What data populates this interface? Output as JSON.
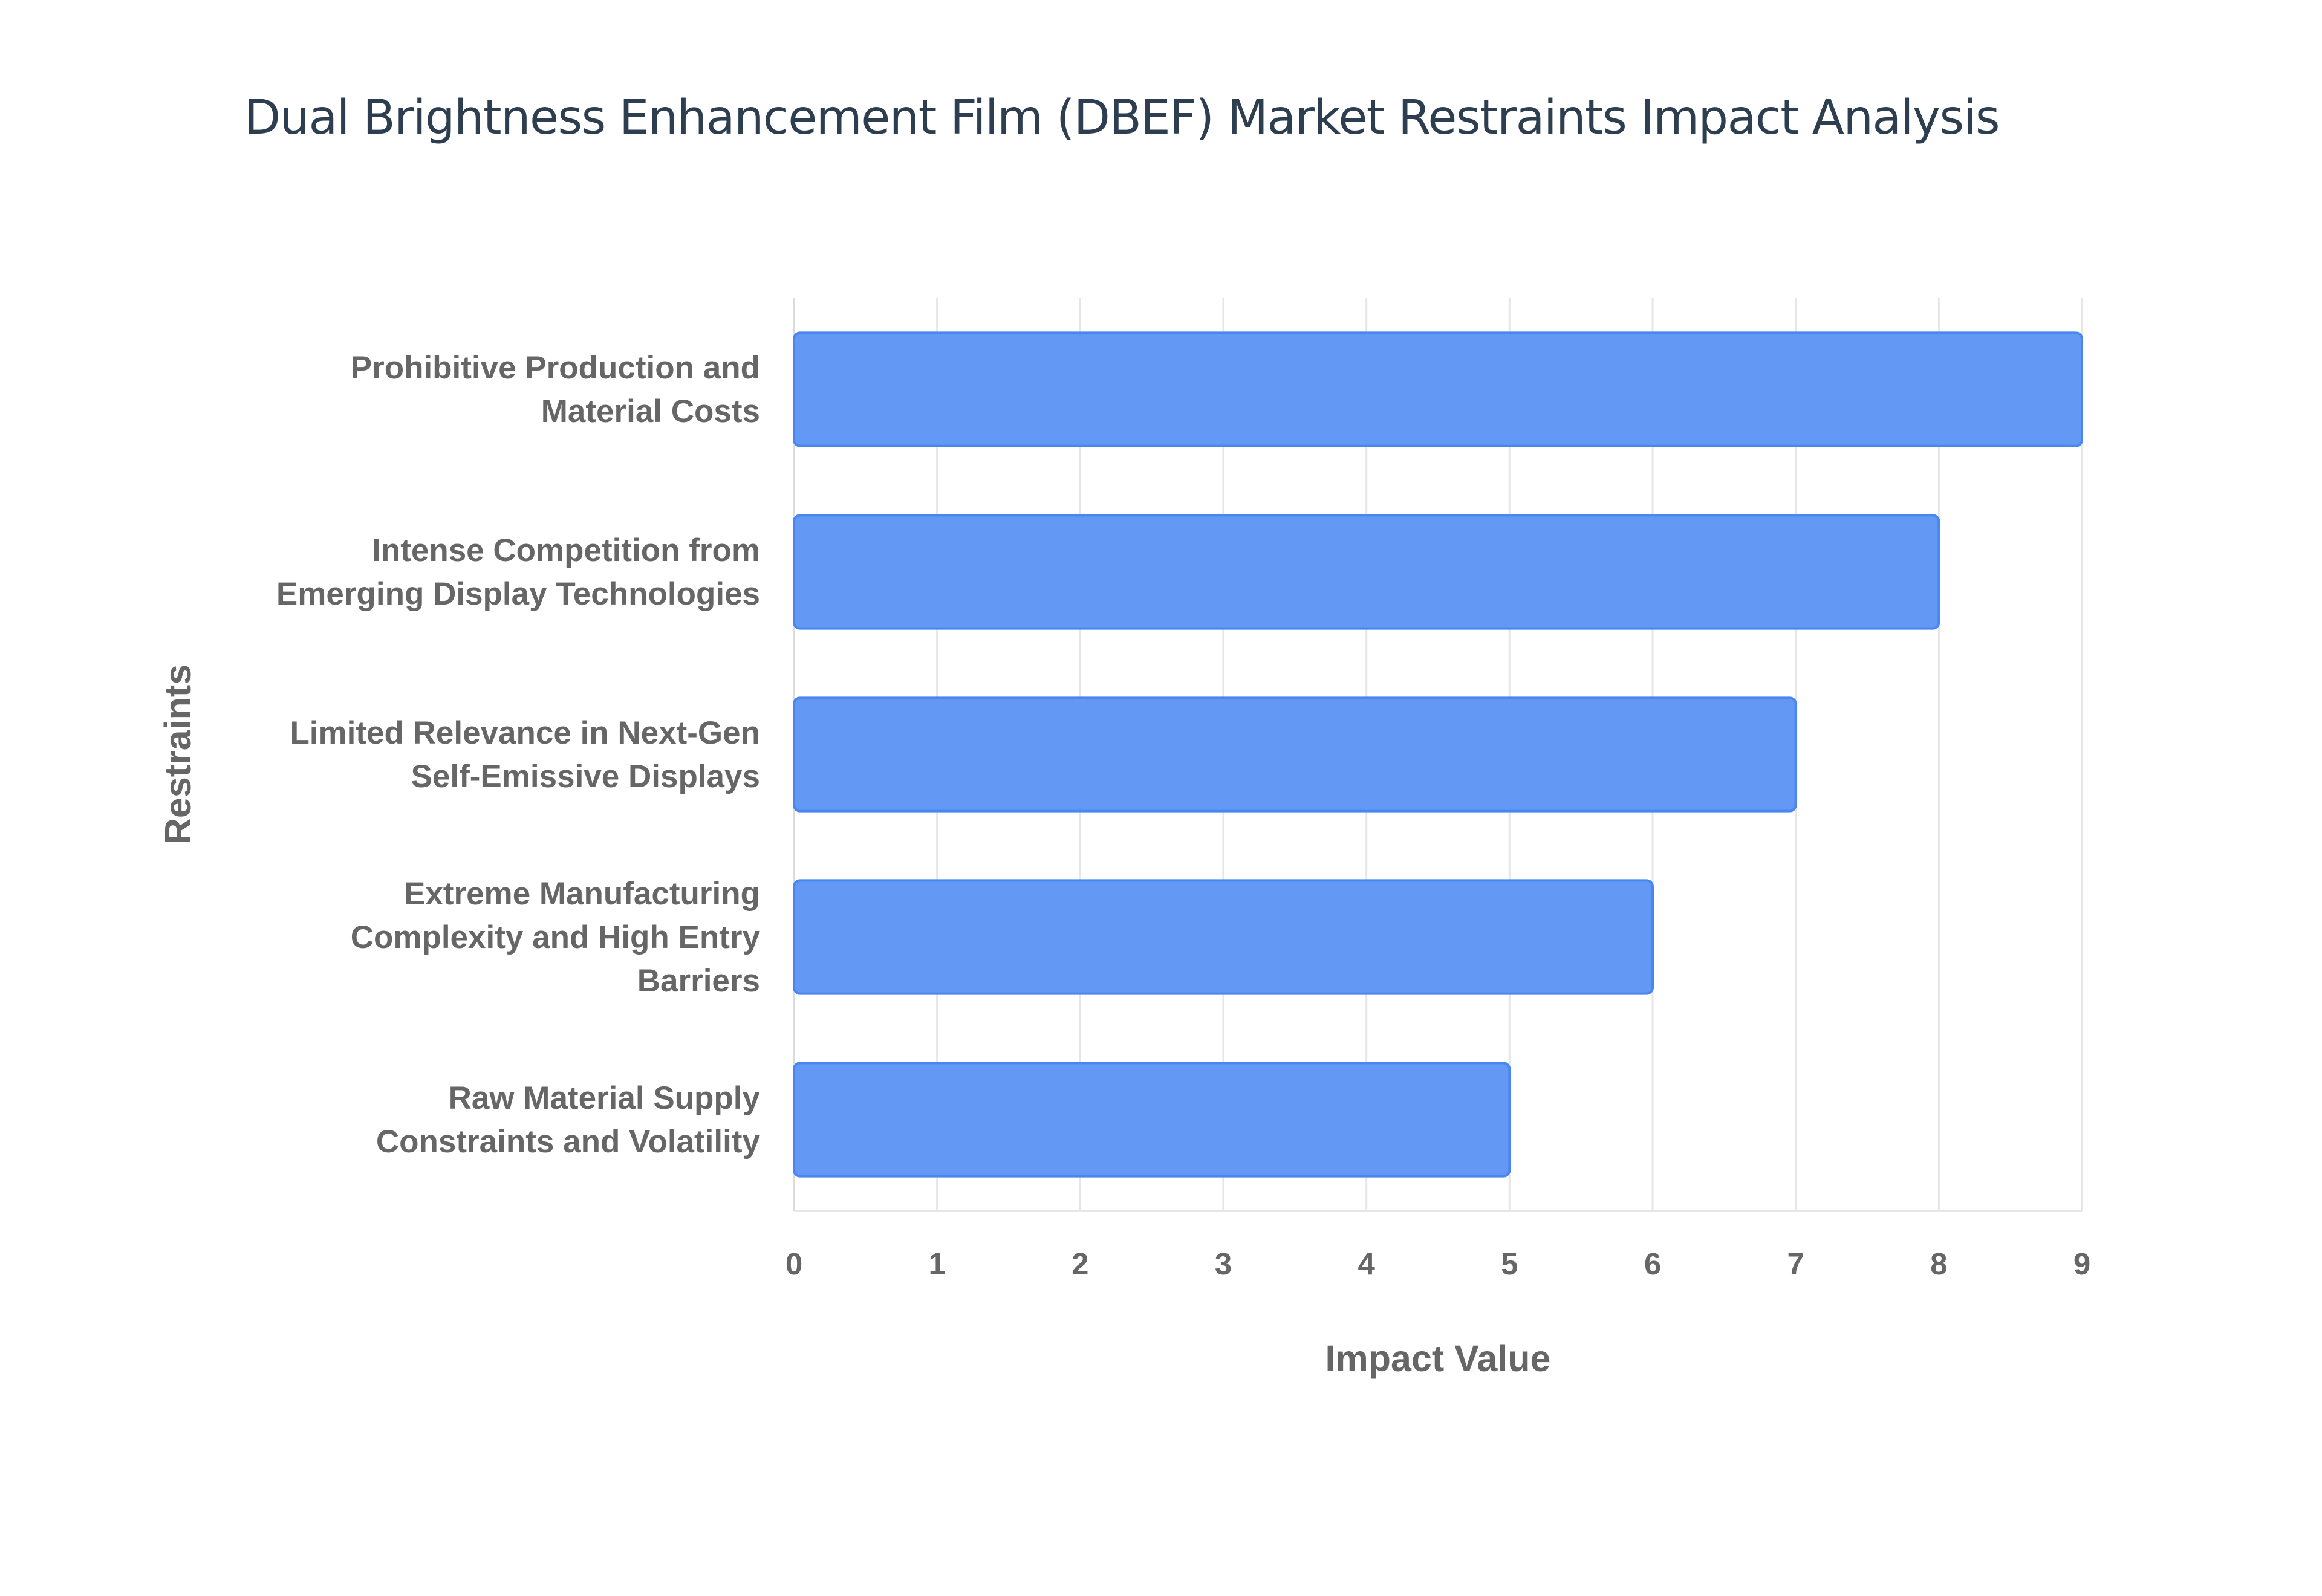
{
  "chart_data": {
    "type": "bar",
    "orientation": "horizontal",
    "title": "Dual Brightness Enhancement Film (DBEF) Market Restraints Impact Analysis",
    "xlabel": "Impact Value",
    "ylabel": "Restraints",
    "categories": [
      [
        "Prohibitive Production and",
        "Material Costs"
      ],
      [
        "Intense Competition from",
        "Emerging Display Technologies"
      ],
      [
        "Limited Relevance in Next-Gen",
        "Self-Emissive Displays"
      ],
      [
        "Extreme Manufacturing",
        "Complexity and High Entry",
        "Barriers"
      ],
      [
        "Raw Material Supply",
        "Constraints and Volatility"
      ]
    ],
    "values": [
      9,
      8,
      7,
      6,
      5
    ],
    "xlim": [
      0,
      9
    ],
    "xticks": [
      "0",
      "1",
      "2",
      "3",
      "4",
      "5",
      "6",
      "7",
      "8",
      "9"
    ],
    "grid": true,
    "legend": "none",
    "colors": {
      "bar_fill": "#6399f4",
      "bar_stroke": "#4a86f0",
      "grid": "#e6e6e6",
      "text": "#666666",
      "title": "#2c3e50"
    }
  }
}
